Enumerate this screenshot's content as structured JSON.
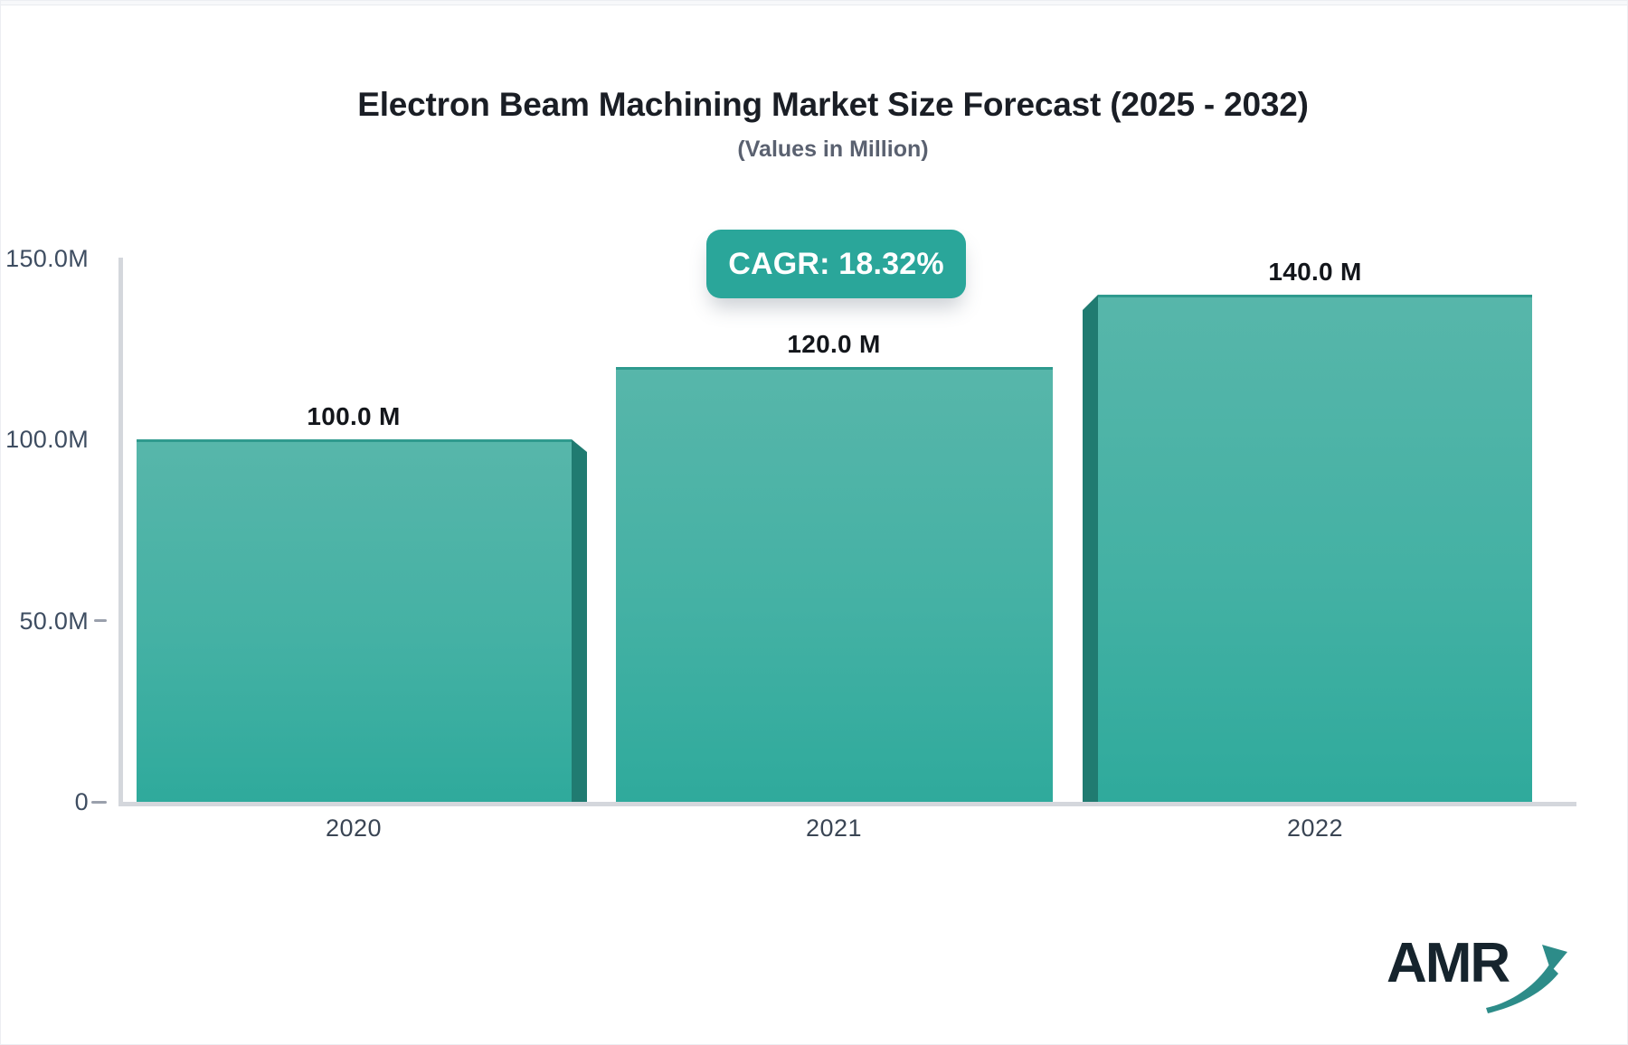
{
  "header": {
    "title": "Electron Beam Machining Market Size Forecast (2025 - 2032)",
    "subtitle": "(Values in Million)"
  },
  "badge": {
    "text": "CAGR: 18.32%",
    "cagr_percent": 18.32,
    "color": "#2aa69a"
  },
  "chart_data": {
    "type": "bar",
    "title": "Electron Beam Machining Market Size Forecast (2025 - 2032)",
    "subtitle": "(Values in Million)",
    "units": "Million",
    "categories": [
      "2020",
      "2021",
      "2022"
    ],
    "values": [
      100.0,
      120.0,
      140.0
    ],
    "value_labels": [
      "100.0 M",
      "120.0 M",
      "140.0 M"
    ],
    "yaxis_labels": [
      "150.0M",
      "100.0M",
      "50.0M",
      "0"
    ],
    "yaxis_values": [
      150,
      100,
      50,
      0
    ],
    "ylim": [
      0,
      150
    ],
    "grid": "off",
    "legend": "none",
    "bar_color_top": "#57b6aa",
    "bar_color_bottom": "#2faa9c",
    "bar_bevel_color": "#207b71",
    "axis_color": "#d4d7dc"
  },
  "logo": {
    "text": "AMR"
  }
}
